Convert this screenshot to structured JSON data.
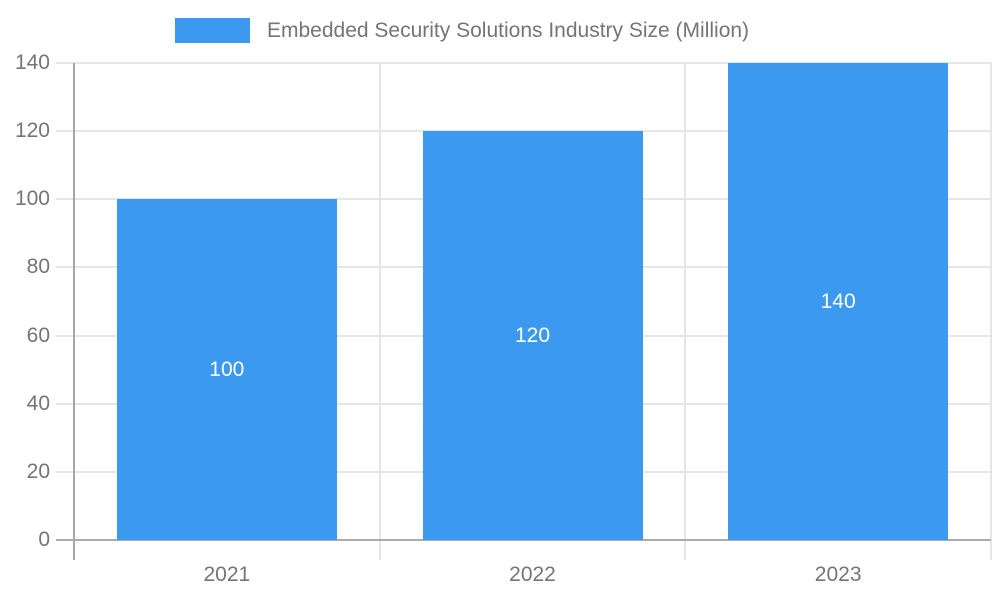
{
  "chart_data": {
    "type": "bar",
    "title": "",
    "legend": {
      "label": "Embedded Security Solutions Industry Size (Million)",
      "position": "top"
    },
    "categories": [
      "2021",
      "2022",
      "2023"
    ],
    "series": [
      {
        "name": "Embedded Security Solutions Industry Size (Million)",
        "values": [
          100,
          120,
          140
        ]
      }
    ],
    "data_labels": [
      "100",
      "120",
      "140"
    ],
    "xlabel": "",
    "ylabel": "",
    "ylim": [
      0,
      140
    ],
    "yticks": [
      0,
      20,
      40,
      60,
      80,
      100,
      120,
      140
    ],
    "grid": true,
    "legend_position": "top-center"
  },
  "colors": {
    "bar": "#3b99f0",
    "grid": "#e6e6e6",
    "axis": "#a6a6a6",
    "baseline": "#ababab",
    "tick_label": "#757575",
    "legend_text": "#757575",
    "data_label": "#ffffff",
    "background": "#ffffff"
  }
}
